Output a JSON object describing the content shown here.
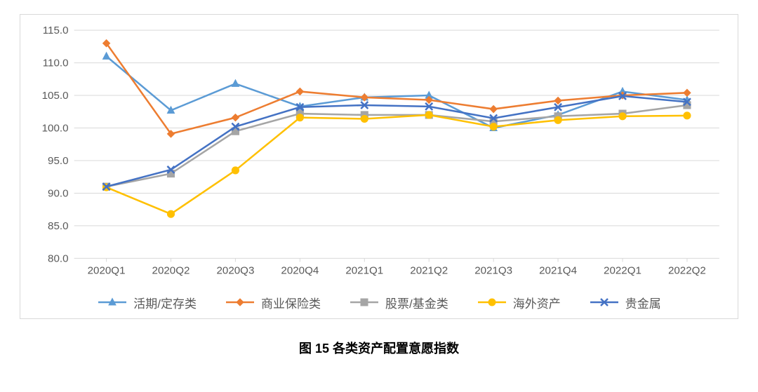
{
  "chart": {
    "type": "line",
    "background_color": "#ffffff",
    "border_color": "#d9d9d9",
    "grid_color": "#d9d9d9",
    "tick_label_color": "#595959",
    "tick_fontsize": 15,
    "legend_fontsize": 17,
    "legend_color": "#595959",
    "caption": "图 15 各类资产配置意愿指数",
    "caption_fontsize": 18,
    "caption_weight": "bold",
    "ylim": [
      80.0,
      115.0
    ],
    "ytick_step": 5.0,
    "ytick_labels": [
      "80.0",
      "85.0",
      "90.0",
      "95.0",
      "100.0",
      "105.0",
      "110.0",
      "115.0"
    ],
    "categories": [
      "2020Q1",
      "2020Q2",
      "2020Q3",
      "2020Q4",
      "2021Q1",
      "2021Q2",
      "2021Q3",
      "2021Q4",
      "2022Q1",
      "2022Q2"
    ],
    "line_width": 2.5,
    "marker_size": 5,
    "series": [
      {
        "key": "deposit",
        "label": "活期/定存类",
        "color": "#5b9bd5",
        "marker": "triangle",
        "values": [
          111.0,
          102.7,
          106.8,
          103.3,
          104.7,
          105.0,
          100.0,
          102.0,
          105.6,
          104.3
        ]
      },
      {
        "key": "insurance",
        "label": "商业保险类",
        "color": "#ed7d31",
        "marker": "diamond",
        "values": [
          113.0,
          99.1,
          101.6,
          105.6,
          104.7,
          104.3,
          102.9,
          104.2,
          105.0,
          105.4
        ]
      },
      {
        "key": "stocks",
        "label": "股票/基金类",
        "color": "#a5a5a5",
        "marker": "square",
        "values": [
          91.0,
          93.0,
          99.5,
          102.2,
          102.0,
          102.0,
          101.0,
          101.8,
          102.2,
          103.5
        ]
      },
      {
        "key": "overseas",
        "label": "海外资产",
        "color": "#ffc000",
        "marker": "circle",
        "values": [
          90.9,
          86.8,
          93.5,
          101.6,
          101.4,
          102.0,
          100.2,
          101.2,
          101.8,
          101.9
        ]
      },
      {
        "key": "metal",
        "label": "贵金属",
        "color": "#4472c4",
        "marker": "x",
        "values": [
          91.0,
          93.6,
          100.2,
          103.2,
          103.5,
          103.3,
          101.5,
          103.2,
          104.9,
          104.0
        ]
      }
    ]
  }
}
